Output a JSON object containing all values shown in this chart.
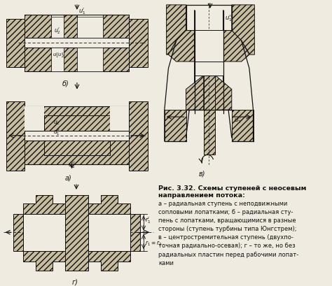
{
  "bg_color": "#f0ebe0",
  "fig_color": "#c8bda0",
  "line_color": "#111111",
  "text_color": "#111111",
  "title_bold": "Рис. 3.32. Схемы ступеней с неосевым\nнаправлением потока:",
  "caption_lines": [
    "а – радиальная ступень с неподвижными сопловыми лопатками; б – радиальная сту-",
    "пень с лопатками, вращающимися в разные стороны (ступень турбины типа Юнгстрем);",
    "в – центростремительная ступень (двухпо-точная радиально-осевая); г – то же, но без",
    "радиальных пластин перед рабочими лопатками"
  ]
}
